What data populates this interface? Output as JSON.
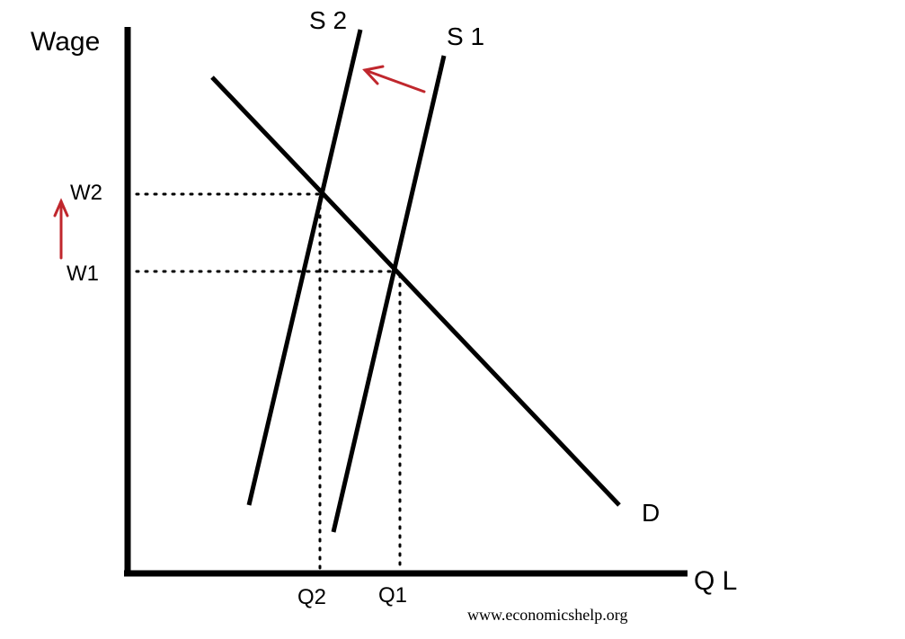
{
  "axes": {
    "y_label": "Wage",
    "x_label": "Q L"
  },
  "curves": {
    "demand": "D",
    "supply_original": "S 1",
    "supply_shifted": "S 2"
  },
  "levels": {
    "wage_high": "W2",
    "wage_low": "W1",
    "quantity_low": "Q2",
    "quantity_high": "Q1"
  },
  "source": "www.economicshelp.org",
  "colors": {
    "lines": "#000000",
    "arrows": "#c0272d"
  }
}
